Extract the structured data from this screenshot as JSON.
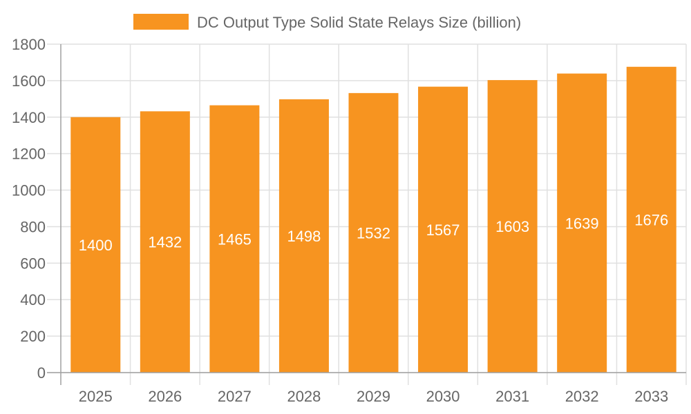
{
  "chart_data": {
    "type": "bar",
    "categories": [
      "2025",
      "2026",
      "2027",
      "2028",
      "2029",
      "2030",
      "2031",
      "2032",
      "2033"
    ],
    "series": [
      {
        "name": "DC Output Type Solid State Relays Size (billion)",
        "values": [
          1400,
          1432,
          1465,
          1498,
          1532,
          1567,
          1603,
          1639,
          1676
        ],
        "color": "#f79420"
      }
    ],
    "yticks": [
      "0",
      "200",
      "400",
      "600",
      "800",
      "1000",
      "1200",
      "1400",
      "1600",
      "1800"
    ],
    "ylim": [
      0,
      1800
    ],
    "grid": true,
    "legend": "top",
    "data_labels": true,
    "colors": {
      "bar": "#f79420",
      "grid": "#e0e0e0",
      "axis": "#a0a0a0",
      "text": "#666666",
      "label": "#ffffff"
    }
  }
}
